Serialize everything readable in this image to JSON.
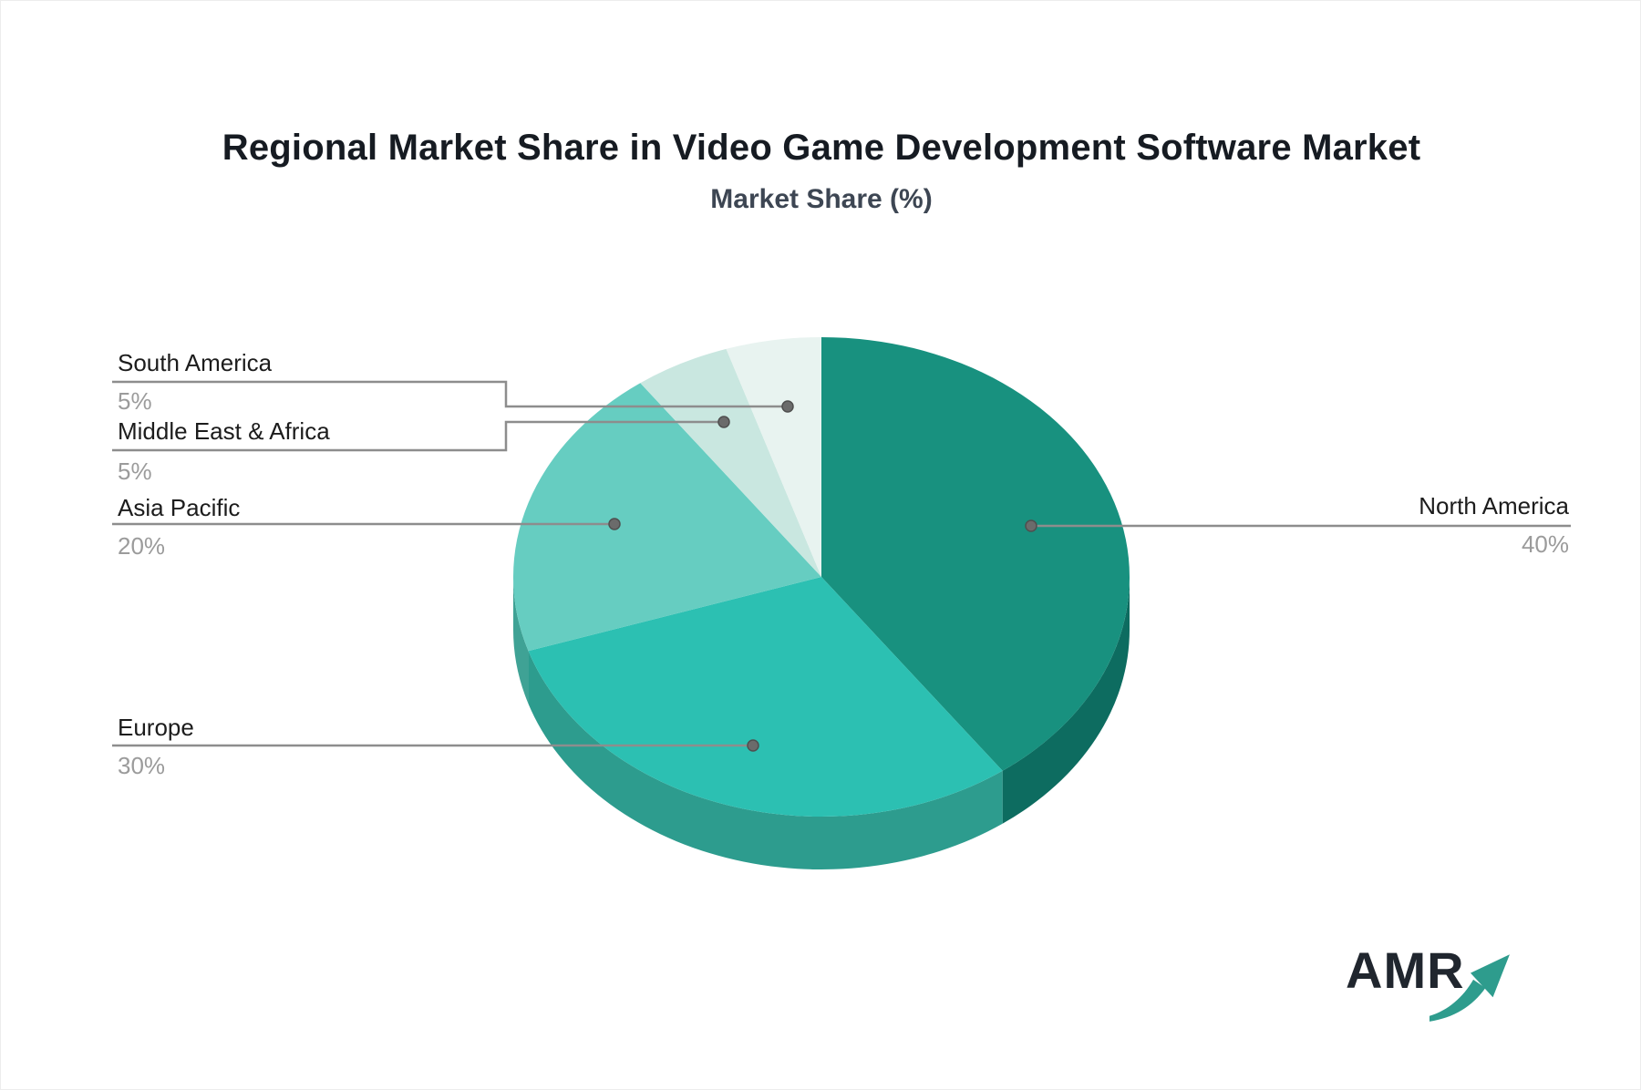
{
  "header": {
    "title": "Regional Market Share in Video Game Development Software Market",
    "subtitle": "Market Share (%)"
  },
  "chart_data": {
    "type": "pie",
    "title": "Regional Market Share in Video Game Development Software Market",
    "subtitle": "Market Share (%)",
    "unit": "%",
    "style": "3d-pie",
    "start_angle_deg": 0,
    "direction": "clockwise",
    "legend": "none",
    "slices": [
      {
        "label": "North America",
        "value": 40,
        "pct_label": "40%",
        "color": "#18917f",
        "side_color": "#0d6c60"
      },
      {
        "label": "Europe",
        "value": 30,
        "pct_label": "30%",
        "color": "#2cc0b2",
        "side_color": "#2d9c8e"
      },
      {
        "label": "Asia Pacific",
        "value": 20,
        "pct_label": "20%",
        "color": "#66cdc1",
        "side_color": "#3fa295"
      },
      {
        "label": "Middle East & Africa",
        "value": 5,
        "pct_label": "5%",
        "color": "#c9e7e0",
        "side_color": "#9cc9c0"
      },
      {
        "label": "South America",
        "value": 5,
        "pct_label": "5%",
        "color": "#e8f3f0",
        "side_color": "#bcd8d3"
      }
    ],
    "label_style": {
      "name_color": "#1c1c1c",
      "pct_color": "#9b9b9b",
      "leader_color": "#8d8d8d",
      "dot_color": "#6b6b6b"
    }
  },
  "watermark": {
    "text": "AMR",
    "text_color": "#20262e",
    "arrow_color": "#2e9c8d"
  }
}
